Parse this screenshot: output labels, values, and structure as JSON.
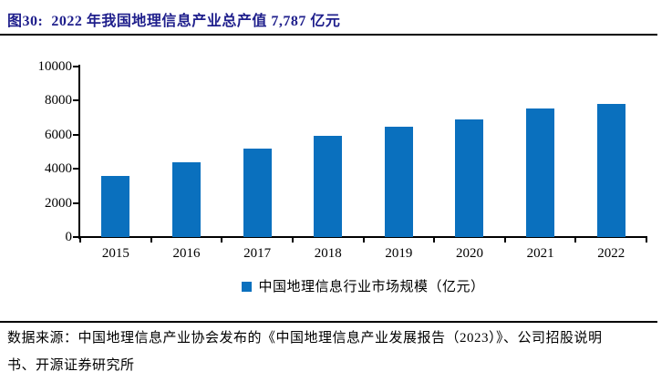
{
  "title": {
    "text": "图30:  2022 年我国地理信息产业总产值 7,787 亿元"
  },
  "chart_data": {
    "type": "bar",
    "categories": [
      "2015",
      "2016",
      "2017",
      "2018",
      "2019",
      "2020",
      "2021",
      "2022"
    ],
    "values": [
      3600,
      4360,
      5180,
      5957,
      6476,
      6890,
      7524,
      7787
    ],
    "series_name": "中国地理信息行业市场规模（亿元）",
    "title": "",
    "xlabel": "",
    "ylabel": "",
    "ylim": [
      0,
      10000
    ],
    "yticks": [
      0,
      2000,
      4000,
      6000,
      8000,
      10000
    ],
    "grid": false,
    "legend_position": "bottom-center",
    "bar_color": "#0a70be"
  },
  "legend": {
    "label": "中国地理信息行业市场规模（亿元）"
  },
  "source": {
    "lines": [
      "数据来源：中国地理信息产业协会发布的《中国地理信息产业发展报告（2023）》、公司招股说明",
      "书、开源证券研究所"
    ]
  },
  "colors": {
    "title": "#1f1f8c",
    "bar": "#0a70be",
    "axis": "#000000",
    "rule": "#000000",
    "text": "#000000"
  }
}
